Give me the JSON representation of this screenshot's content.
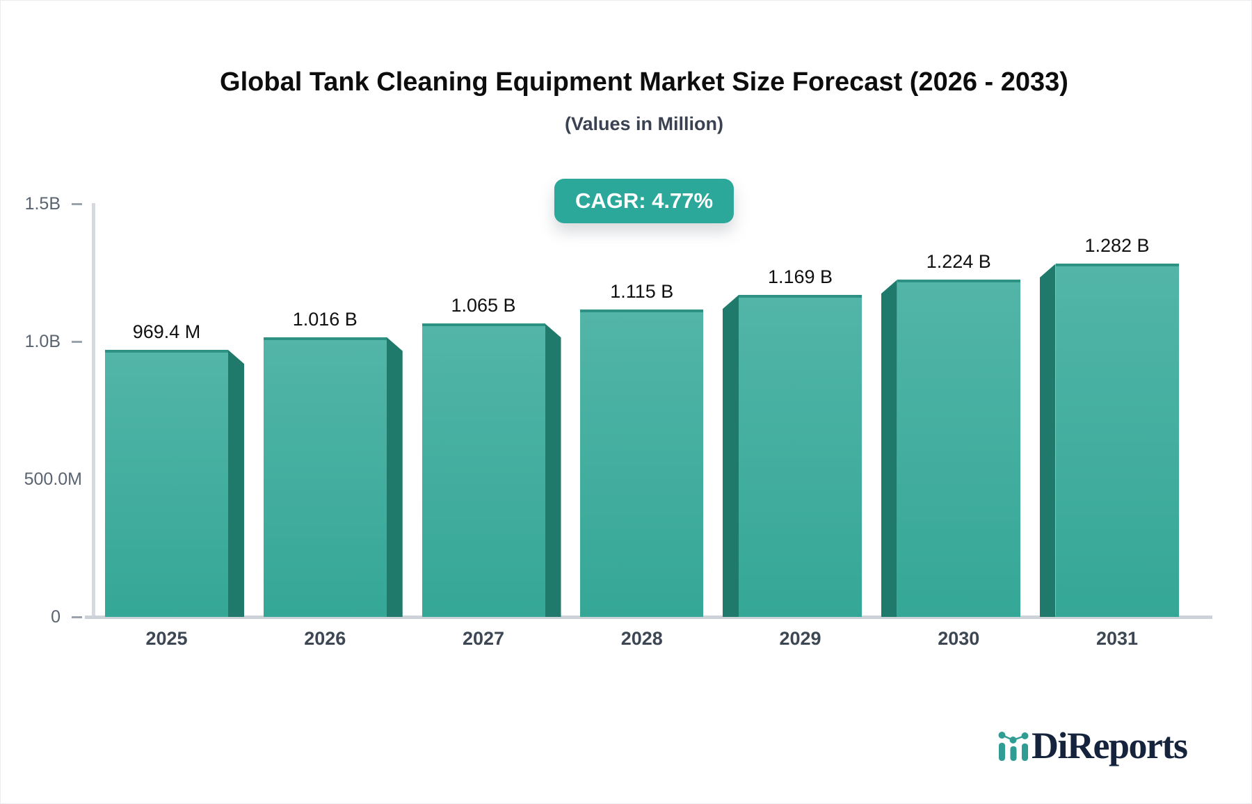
{
  "page": {
    "title": "Global Tank Cleaning Equipment Market Size Forecast (2026 - 2033)",
    "subtitle": "(Values in Million)"
  },
  "badge": {
    "label": "CAGR: 4.77%"
  },
  "logo": {
    "text": "DiReports",
    "icon": "mini-bar-chart-icon"
  },
  "chart_data": {
    "type": "bar",
    "title": "Global Tank Cleaning Equipment Market Size Forecast (2026 - 2033)",
    "subtitle": "(Values in Million)",
    "annotation": "CAGR: 4.77%",
    "categories": [
      "2025",
      "2026",
      "2027",
      "2028",
      "2029",
      "2030",
      "2031"
    ],
    "values_billion": [
      0.9694,
      1.016,
      1.065,
      1.115,
      1.169,
      1.224,
      1.282
    ],
    "value_labels": [
      "969.4 M",
      "1.016 B",
      "1.065 B",
      "1.115 B",
      "1.169 B",
      "1.224 B",
      "1.282 B"
    ],
    "ylim": [
      0,
      1.5
    ],
    "y_ticks": [
      {
        "label": "0",
        "value": 0,
        "dash": true
      },
      {
        "label": "500.0M",
        "value": 0.5,
        "dash": false
      },
      {
        "label": "1.0B",
        "value": 1.0,
        "dash": true
      },
      {
        "label": "1.5B",
        "value": 1.5,
        "dash": true
      }
    ],
    "grid": false,
    "legend": false
  },
  "colors": {
    "bar_face_top": "#52b5a7",
    "bar_face_bottom": "#35a797",
    "bar_top_edge": "#2d9284",
    "bar_side": "#207a6c",
    "badge_bg": "#2ba89a",
    "badge_text": "#ffffff",
    "axis_line": "#d6d9de",
    "tick_text": "#5a6370",
    "x_label_text": "#3d4754",
    "title_text": "#0d0d0d",
    "logo_text": "#15233c",
    "logo_icon": "#2f9d94"
  }
}
